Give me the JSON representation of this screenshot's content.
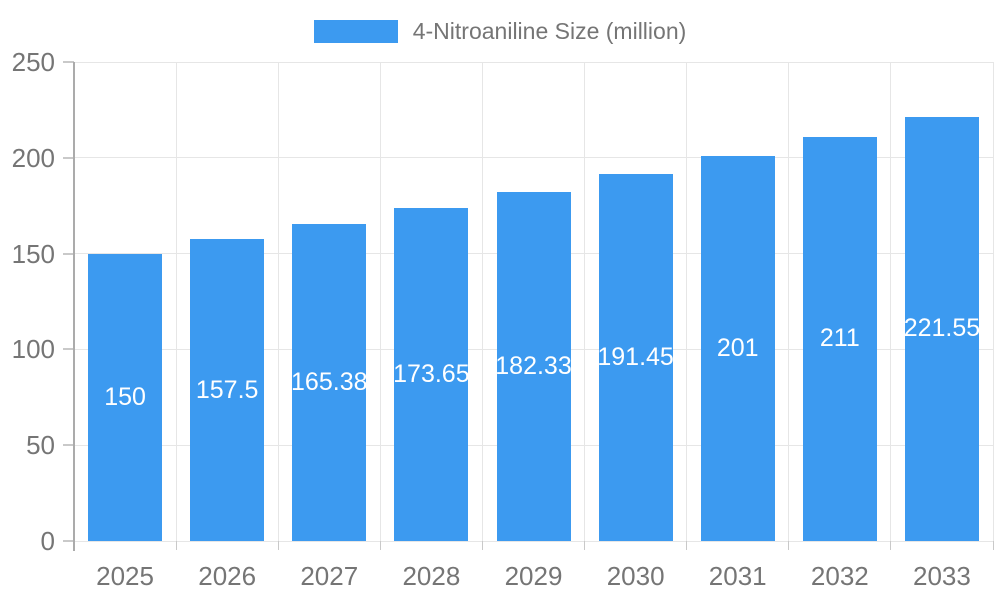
{
  "chart_data": {
    "type": "bar",
    "legend_label": "4-Nitroaniline Size (million)",
    "categories": [
      "2025",
      "2026",
      "2027",
      "2028",
      "2029",
      "2030",
      "2031",
      "2032",
      "2033"
    ],
    "values": [
      150,
      157.5,
      165.38,
      173.65,
      182.33,
      191.45,
      201,
      211,
      221.55
    ],
    "value_labels": [
      "150",
      "157.5",
      "165.38",
      "173.65",
      "182.33",
      "191.45",
      "201",
      "211",
      "221.55"
    ],
    "ylim": [
      0,
      250
    ],
    "ytick_step": 50,
    "ytick_labels": [
      "0",
      "50",
      "100",
      "150",
      "200",
      "250"
    ],
    "grid": true,
    "legend_position": "top-center",
    "value_label_position": "inside-center",
    "xlabel": "",
    "ylabel": "",
    "colors": {
      "bar": "#3C9AF0",
      "grid": "#E6E6E6",
      "axis_line": "#ABABAB",
      "tick": "#C9C9C9",
      "axis_label": "#757575",
      "legend_text": "#757575",
      "value_label": "#FFFFFF",
      "background": "#FFFFFF"
    }
  }
}
